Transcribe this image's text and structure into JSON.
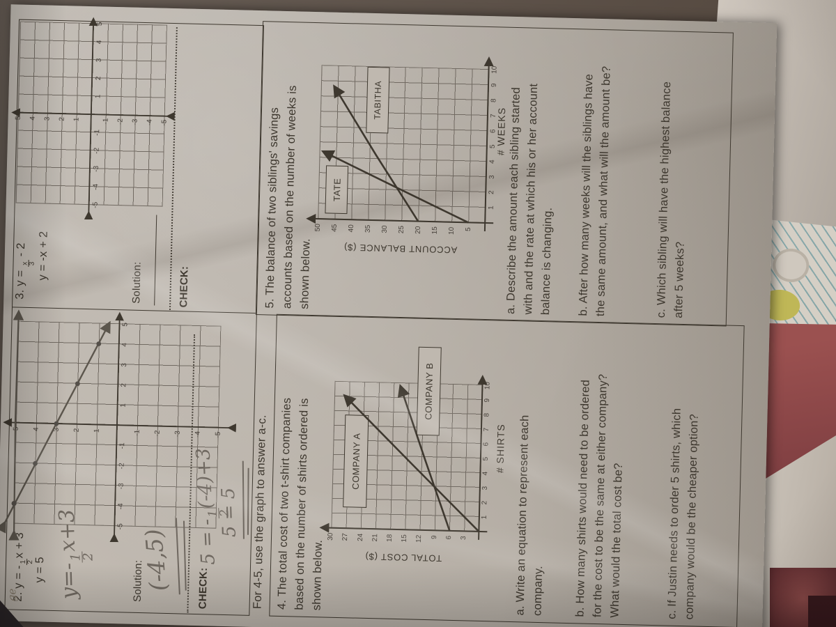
{
  "colors": {
    "paper": "#b7b0a7",
    "ink": "#3e382f",
    "pencil": "#5c564d",
    "grid_line": "#716a62",
    "table_maroon": "#7a3a3c",
    "sticker_teal": "#7fb3ba",
    "sticker_yellow": "#bfb757"
  },
  "worksheet": {
    "p2": {
      "eq1_pre": "2. y = -",
      "eq1_num": "1",
      "eq1_den": "2",
      "eq1_suf": "x + 3",
      "eq2": "y = 5",
      "hw_eq_pre": "y=-",
      "hw_num": "1",
      "hw_den": "2",
      "hw_eq_suf": "x+3",
      "solution_label": "Solution:",
      "hw_solution": "(-4,5)",
      "check_label": "CHECK:",
      "hw_check1_pre": "5 = -",
      "hw_check1_num": "1",
      "hw_check1_den": "2",
      "hw_check1_suf": "(-4)+3",
      "hw_check2": "5 = 5"
    },
    "p3": {
      "eq1_pre": "3. y = ",
      "eq1_num": "x",
      "eq1_den": "3",
      "eq1_suf": " - 2",
      "eq2": "y = -x + 2",
      "solution_label": "Solution:",
      "check_label": "CHECK:"
    },
    "header45": "For 4-5, use the graph to answer a-c.",
    "p4": {
      "intro": [
        "4. The total cost of two t-shirt companies",
        "based on the number of shirts ordered is",
        "shown below."
      ],
      "qa": [
        "a. Write an equation to represent each",
        "company."
      ],
      "qb": [
        "b. How many shirts would need to be ordered",
        "for the cost to be the same at either company?",
        "What would the total cost be?"
      ],
      "qc": [
        "c. If Justin needs to order 5 shirts, which",
        "company would be the cheaper option?"
      ]
    },
    "p5": {
      "intro": [
        "5. The balance of two siblings' savings",
        "accounts based on the number of weeks is",
        "shown below."
      ],
      "qa": [
        "a. Describe the amount each sibling started",
        "with and the rate at which his or her account",
        "balance is changing."
      ],
      "qb": [
        "b. After how many weeks will the siblings have",
        "the same amount, and what will the amount be?"
      ],
      "qc": [
        "c. Which sibling will have the highest balance",
        "after 5 weeks?"
      ]
    },
    "stray_mark": "ge"
  },
  "chart_data": [
    {
      "type": "line",
      "id": "problem2-graph",
      "xlim": [
        -5,
        5
      ],
      "ylim": [
        -5,
        5
      ],
      "grid": true,
      "xticks": [
        "-5",
        "-4",
        "-3",
        "-2",
        "-1",
        "",
        "1",
        "2",
        "3",
        "4",
        "5"
      ],
      "yticks": [
        "-5",
        "-4",
        "-3",
        "-2",
        "-1",
        "",
        "1",
        "2",
        "3",
        "4",
        "5"
      ],
      "series": [
        {
          "name": "y = -1/2x + 3",
          "style": "pencil",
          "x": [
            -5,
            5
          ],
          "y": [
            5.5,
            0.5
          ],
          "points": [
            [
              -4,
              5
            ],
            [
              -2,
              4
            ],
            [
              0,
              3
            ],
            [
              2,
              2
            ],
            [
              4,
              1
            ]
          ]
        },
        {
          "name": "y = 5",
          "style": "pencil",
          "x": [
            -5.5,
            5.5
          ],
          "y": [
            5,
            5
          ]
        }
      ]
    },
    {
      "type": "line",
      "id": "problem3-graph",
      "xlim": [
        -5,
        5
      ],
      "ylim": [
        -5,
        5
      ],
      "grid": true,
      "xticks": [
        "-5",
        "-4",
        "-3",
        "-2",
        "-1",
        "",
        "1",
        "2",
        "3",
        "4",
        "5"
      ],
      "yticks": [
        "-5",
        "-4",
        "-3",
        "-2",
        "-1",
        "",
        "1",
        "2",
        "3",
        "4",
        "5"
      ],
      "series": []
    },
    {
      "type": "line",
      "id": "tshirt-cost-graph",
      "xlabel": "# SHIRTS",
      "ylabel": "TOTAL COST ($)",
      "xlim": [
        0,
        10
      ],
      "ylim": [
        0,
        30
      ],
      "grid": true,
      "xticks": [
        "1",
        "2",
        "3",
        "4",
        "5",
        "6",
        "7",
        "8",
        "9",
        "10"
      ],
      "yticks": [
        "3",
        "6",
        "9",
        "12",
        "15",
        "18",
        "21",
        "24",
        "27",
        "30"
      ],
      "series": [
        {
          "name": "COMPANY A",
          "equation": "y = 3x",
          "x": [
            0,
            9.2
          ],
          "y": [
            0,
            27.6
          ]
        },
        {
          "name": "COMPANY B",
          "equation": "y = x + 6",
          "x": [
            0,
            9.7
          ],
          "y": [
            6,
            15.7
          ]
        }
      ]
    },
    {
      "type": "line",
      "id": "savings-graph",
      "xlabel": "# WEEKS",
      "ylabel": "ACCOUNT BALANCE ($)",
      "xlim": [
        0,
        10
      ],
      "ylim": [
        0,
        50
      ],
      "grid": true,
      "xticks": [
        "1",
        "2",
        "3",
        "4",
        "5",
        "6",
        "7",
        "8",
        "9",
        "10"
      ],
      "yticks": [
        "5",
        "10",
        "15",
        "20",
        "25",
        "30",
        "35",
        "40",
        "45",
        "50"
      ],
      "series": [
        {
          "name": "TATE",
          "equation": "y = 10x + 5",
          "x": [
            0,
            4.4
          ],
          "y": [
            5,
            49
          ]
        },
        {
          "name": "TABITHA",
          "equation": "y = 3x + 20",
          "x": [
            0,
            8.6
          ],
          "y": [
            20,
            45.8
          ]
        }
      ]
    }
  ]
}
